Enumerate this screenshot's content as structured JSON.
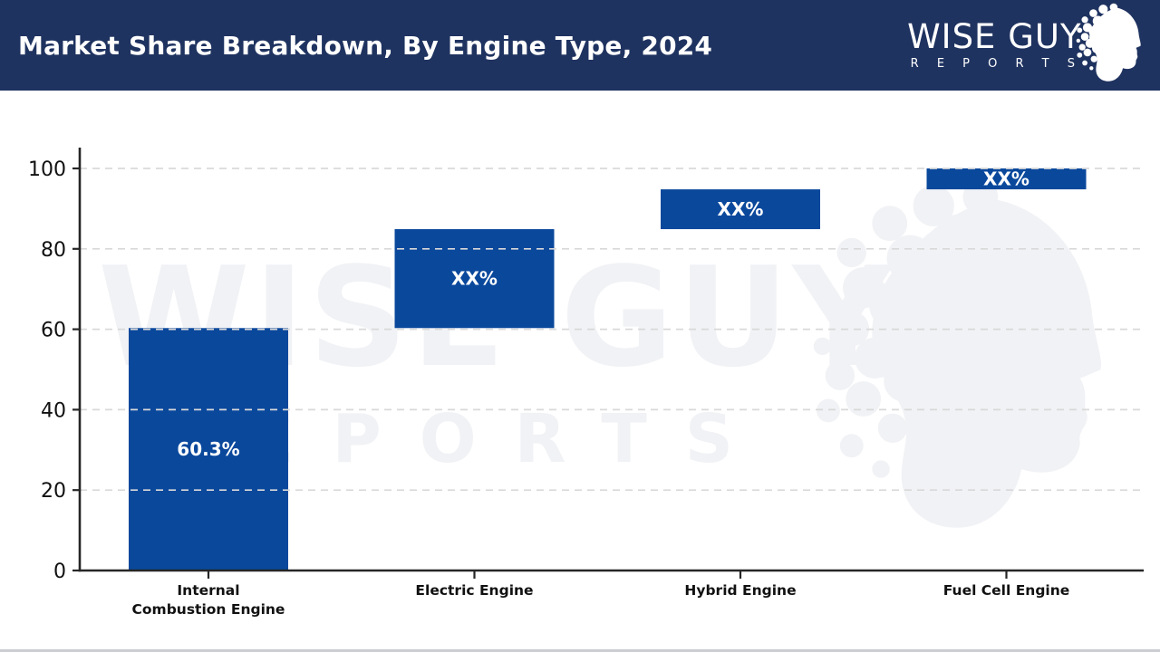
{
  "header": {
    "title": "Market Share Breakdown, By Engine Type, 2024",
    "logo": {
      "line1": "WISE GUY",
      "line2": "R E P O R T S",
      "head_icon": "dotted-head-profile"
    }
  },
  "watermark": {
    "line1": "WISE GUY",
    "line2": "REPORTS",
    "head_icon": "dotted-head-profile"
  },
  "colors": {
    "header_bg": "#1f3360",
    "header_text": "#ffffff",
    "bar": "#0a489c",
    "bar_label": "#ffffff",
    "grid": "#d9d9d9",
    "axis": "#262626",
    "tick_label": "#111111",
    "watermark": "#f1f2f5"
  },
  "chart_data": {
    "type": "bar",
    "subtype": "waterfall",
    "title": "Market Share Breakdown, By Engine Type, 2024",
    "categories": [
      "Internal\nCombustion Engine",
      "Electric Engine",
      "Hybrid Engine",
      "Fuel Cell Engine"
    ],
    "segments": [
      {
        "category": "Internal Combustion Engine",
        "start": 0,
        "end": 60.3,
        "label": "60.3%"
      },
      {
        "category": "Electric Engine",
        "start": 60.3,
        "end": 84.9,
        "label": "XX%"
      },
      {
        "category": "Hybrid Engine",
        "start": 84.9,
        "end": 94.8,
        "label": "XX%"
      },
      {
        "category": "Fuel Cell Engine",
        "start": 94.8,
        "end": 100,
        "label": "XX%"
      }
    ],
    "xlabel": "",
    "ylabel": "",
    "ylim": [
      0,
      100
    ],
    "yticks": [
      0,
      20,
      40,
      60,
      80,
      100
    ],
    "grid": "horizontal dashed, drawn above bars",
    "legend": "none"
  }
}
